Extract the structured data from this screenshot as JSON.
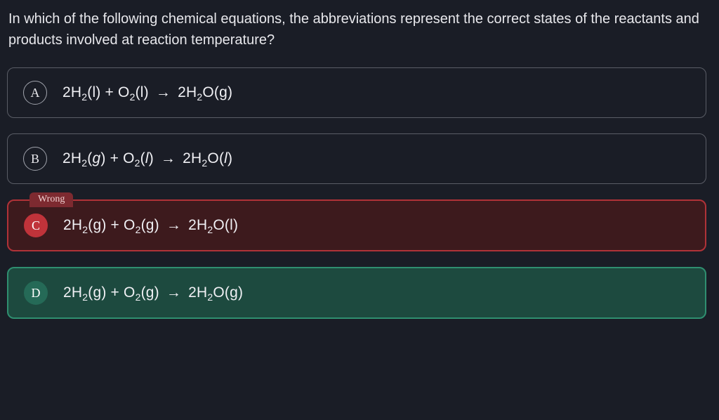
{
  "question": "In which of the following chemical equations, the abbreviations represent the correct states of the reactants and products involved at reaction temperature?",
  "options": [
    {
      "letter": "A",
      "state": "neutral",
      "formula_html": "2H<sub>2</sub>(l) + O<sub>2</sub>(l) <span class=\"arrow\">→</span> 2H<sub>2</sub>O(g)"
    },
    {
      "letter": "B",
      "state": "neutral",
      "formula_html": "2H<sub>2</sub>(<span class=\"it\">g</span>) + O<sub>2</sub>(<span class=\"it\">l</span>) <span class=\"arrow\">→</span> 2H<sub>2</sub>O(<span class=\"it\">l</span>)"
    },
    {
      "letter": "C",
      "state": "wrong",
      "tag": "Wrong",
      "formula_html": "2H<sub>2</sub>(g) + O<sub>2</sub>(g) <span class=\"arrow\">→</span> 2H<sub>2</sub>O(l)"
    },
    {
      "letter": "D",
      "state": "correct",
      "formula_html": "2H<sub>2</sub>(g) + O<sub>2</sub>(g) <span class=\"arrow\">→</span> 2H<sub>2</sub>O(g)"
    }
  ],
  "colors": {
    "background": "#1a1d26",
    "text": "#e8e8ec",
    "option_border": "#5a5d66",
    "wrong_bg": "#3d1a1d",
    "wrong_border": "#b03238",
    "wrong_letter_bg": "#c0333a",
    "wrong_tag_bg": "#7d2a30",
    "correct_bg": "#1d4a3f",
    "correct_border": "#2f8f70",
    "correct_letter_bg": "#256a57"
  }
}
